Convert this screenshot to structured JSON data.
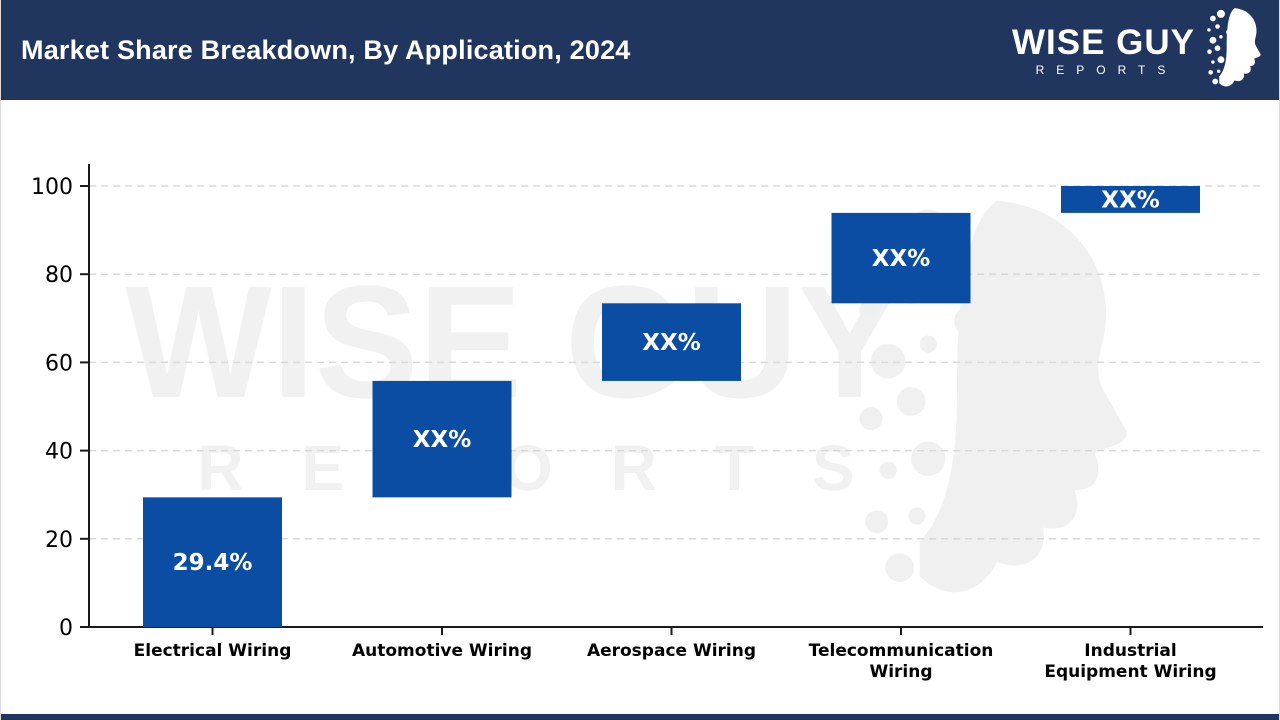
{
  "header": {
    "title": "Market Share Breakdown, By Application, 2024",
    "logo_line1": "WISE GUY",
    "logo_line2": "REPORTS"
  },
  "watermark": {
    "line1": "WISE GUY",
    "line2": "REPORTS"
  },
  "colors": {
    "header_bg": "#21365F",
    "footer_bg": "#21365F",
    "bar": "#0B4DA3",
    "bar_label": "#ffffff",
    "axis": "#1a1a1a",
    "grid": "#d9d9d9",
    "tick_label": "#000000",
    "category_label": "#000000",
    "watermark": "#f1f1f1"
  },
  "chart_data": {
    "type": "bar",
    "variant": "floating-waterfall",
    "title": "Market Share Breakdown, By Application, 2024",
    "xlabel": "",
    "ylabel": "",
    "grid": true,
    "legend": false,
    "ylim": [
      0,
      105
    ],
    "yticks": [
      0,
      20,
      40,
      60,
      80,
      100
    ],
    "categories": [
      {
        "label": "Electrical Wiring",
        "lines": [
          "Electrical Wiring"
        ]
      },
      {
        "label": "Automotive Wiring",
        "lines": [
          "Automotive Wiring"
        ]
      },
      {
        "label": "Aerospace Wiring",
        "lines": [
          "Aerospace Wiring"
        ]
      },
      {
        "label": "Telecommunication Wiring",
        "lines": [
          "Telecommunication",
          "Wiring"
        ]
      },
      {
        "label": "Industrial Equipment Wiring",
        "lines": [
          "Industrial",
          "Equipment Wiring"
        ]
      }
    ],
    "bars": [
      {
        "category": "Electrical Wiring",
        "start": 0,
        "end": 29.4,
        "value_label": "29.4%"
      },
      {
        "category": "Automotive Wiring",
        "start": 29.4,
        "end": 55.8,
        "value_label": "XX%"
      },
      {
        "category": "Aerospace Wiring",
        "start": 55.8,
        "end": 73.4,
        "value_label": "XX%"
      },
      {
        "category": "Telecommunication Wiring",
        "start": 73.4,
        "end": 93.9,
        "value_label": "XX%"
      },
      {
        "category": "Industrial Equipment Wiring",
        "start": 93.9,
        "end": 100,
        "value_label": "XX%"
      }
    ]
  }
}
